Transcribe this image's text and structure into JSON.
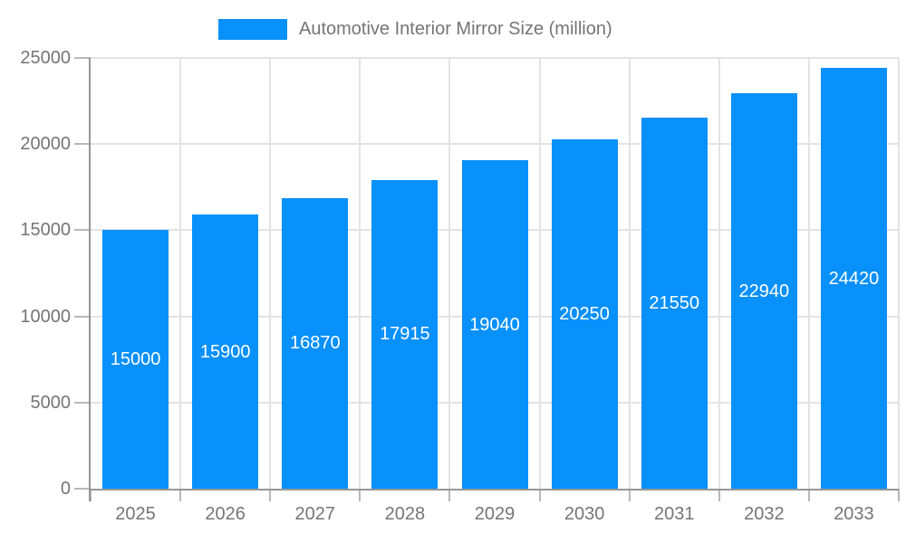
{
  "legend": {
    "label": "Automotive Interior Mirror Size (million)"
  },
  "chart_data": {
    "type": "bar",
    "title": "",
    "categories": [
      "2025",
      "2026",
      "2027",
      "2028",
      "2029",
      "2030",
      "2031",
      "2032",
      "2033"
    ],
    "series": [
      {
        "name": "Automotive Interior Mirror Size (million)",
        "values": [
          15000,
          15900,
          16870,
          17915,
          19040,
          20250,
          21550,
          22940,
          24420
        ]
      }
    ],
    "value_labels": [
      "15000",
      "15900",
      "16870",
      "17915",
      "19040",
      "20250",
      "21550",
      "22940",
      "24420"
    ],
    "xlabel": "",
    "ylabel": "",
    "ylim": [
      0,
      25000
    ],
    "yticks": [
      0,
      5000,
      10000,
      15000,
      20000,
      25000
    ],
    "grid": true,
    "legend_position": "top",
    "colors": {
      "bar": "#0890fb",
      "grid": "#e3e3e3",
      "axis": "#969696",
      "tick": "#b8b8b8",
      "axis_text": "#757575",
      "value_label": "#ffffff",
      "background": "#ffffff"
    }
  }
}
